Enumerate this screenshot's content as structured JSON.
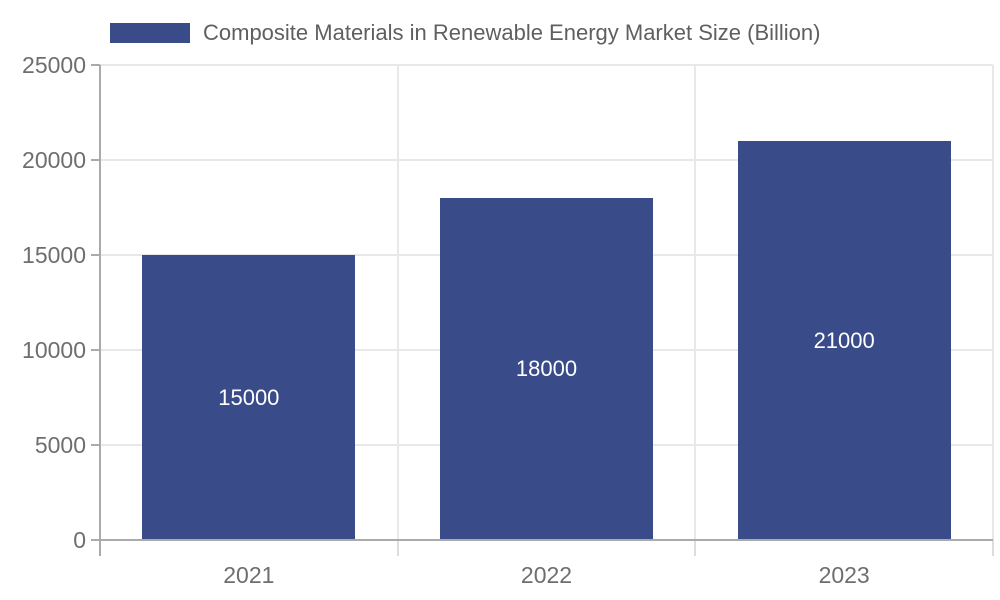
{
  "legend": {
    "label": "Composite Materials in Renewable Energy Market Size (Billion)"
  },
  "chart_data": {
    "type": "bar",
    "title": "Composite Materials in Renewable Energy Market Size (Billion)",
    "series_name": "Composite Materials in Renewable Energy Market Size (Billion)",
    "categories": [
      "2021",
      "2022",
      "2023"
    ],
    "values": [
      15000,
      18000,
      21000
    ],
    "bar_value_labels": [
      "15000",
      "18000",
      "21000"
    ],
    "xlabel": "",
    "ylabel": "",
    "ylim": [
      0,
      25000
    ],
    "y_ticks": [
      0,
      5000,
      10000,
      15000,
      20000,
      25000
    ],
    "y_tick_labels": [
      "0",
      "5000",
      "10000",
      "15000",
      "20000",
      "25000"
    ],
    "grid": true,
    "legend_position": "top-left",
    "colors": {
      "bar": "#3A4B8A",
      "bar_label_text": "#FFFFFF",
      "grid_line": "#E8E8E8",
      "axis_line": "#AAAAAA",
      "boundary_tick": "#DDDDDD",
      "tick_text": "#6E6E6E",
      "legend_text": "#5F5F5F",
      "background": "#FFFFFF"
    }
  }
}
